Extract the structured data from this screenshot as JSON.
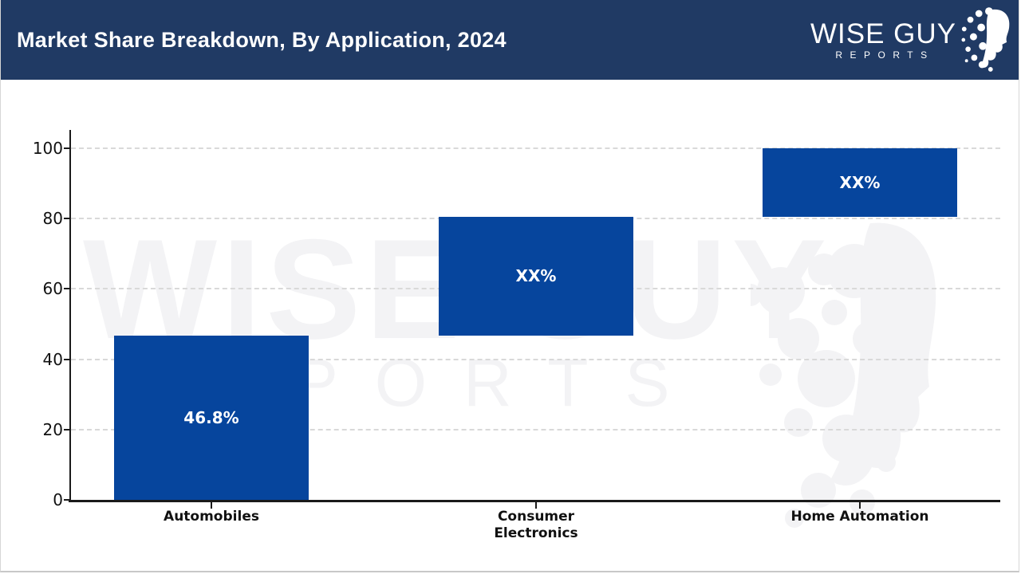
{
  "header": {
    "title": "Market Share Breakdown, By Application, 2024",
    "logo": {
      "wordmark": "WISE GUY",
      "tagline": "REPORTS"
    }
  },
  "watermark": {
    "wordmark": "WISE GUY",
    "tagline": "REPORTS"
  },
  "colors": {
    "header_bg": "#203a64",
    "bar": "#06459d",
    "grid": "#d9d9d9",
    "axis": "#1a1a1a",
    "bar_label_text": "#ffffff",
    "watermark": "#f3f3f5"
  },
  "chart_data": {
    "type": "bar",
    "subtype": "floating-waterfall",
    "title": "Market Share Breakdown, By Application, 2024",
    "categories": [
      "Automobiles",
      "Consumer\nElectronics",
      "Home Automation"
    ],
    "bars": [
      {
        "category": "Automobiles",
        "start": 0,
        "end": 46.8,
        "label": "46.8%"
      },
      {
        "category": "Consumer Electronics",
        "start": 46.8,
        "end": 80.5,
        "label": "XX%"
      },
      {
        "category": "Home Automation",
        "start": 80.5,
        "end": 100,
        "label": "XX%"
      }
    ],
    "xlabel": "",
    "ylabel": "",
    "ylim": [
      0,
      100
    ],
    "yticks": [
      0,
      20,
      40,
      60,
      80,
      100
    ],
    "grid": "dashed-horizontal",
    "legend": "none"
  }
}
